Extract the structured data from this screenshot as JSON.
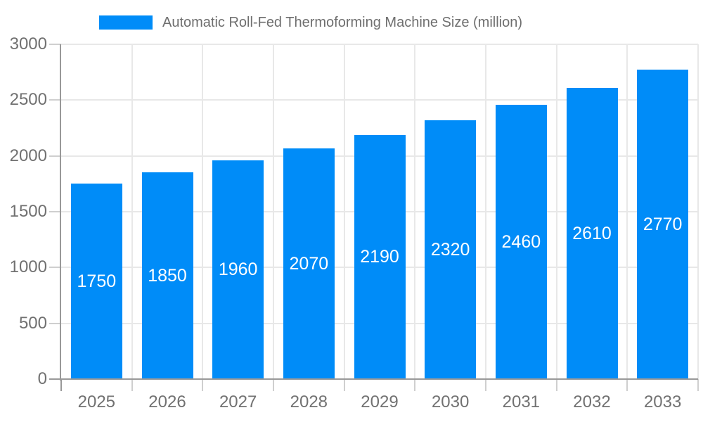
{
  "legend": {
    "label": "Automatic Roll-Fed Thermoforming Machine Size (million)"
  },
  "chart_data": {
    "type": "bar",
    "title": "Automatic Roll-Fed Thermoforming Machine Size (million)",
    "categories": [
      "2025",
      "2026",
      "2027",
      "2028",
      "2029",
      "2030",
      "2031",
      "2032",
      "2033"
    ],
    "series": [
      {
        "name": "Automatic Roll-Fed Thermoforming Machine Size (million)",
        "values": [
          1750,
          1850,
          1960,
          2070,
          2190,
          2320,
          2460,
          2610,
          2770
        ]
      }
    ],
    "values": [
      1750,
      1850,
      1960,
      2070,
      2190,
      2320,
      2460,
      2610,
      2770
    ],
    "value_labels": [
      "1750",
      "1850",
      "1960",
      "2070",
      "2190",
      "2320",
      "2460",
      "2610",
      "2770"
    ],
    "xlabel": "",
    "ylabel": "",
    "ylim": [
      0,
      3000
    ],
    "yticks": [
      0,
      500,
      1000,
      1500,
      2000,
      2500,
      3000
    ],
    "grid": true,
    "legend_position": "top",
    "value_label_position": "inside-center"
  },
  "colors": {
    "bar": "#008cf8",
    "bar_value_text": "#ffffff",
    "axis_line": "#999999",
    "gridline": "#e8e8e8",
    "tick": "#cfcfcf",
    "axis_text": "#717171",
    "legend_text": "#6f6f6f",
    "background": "#ffffff"
  }
}
